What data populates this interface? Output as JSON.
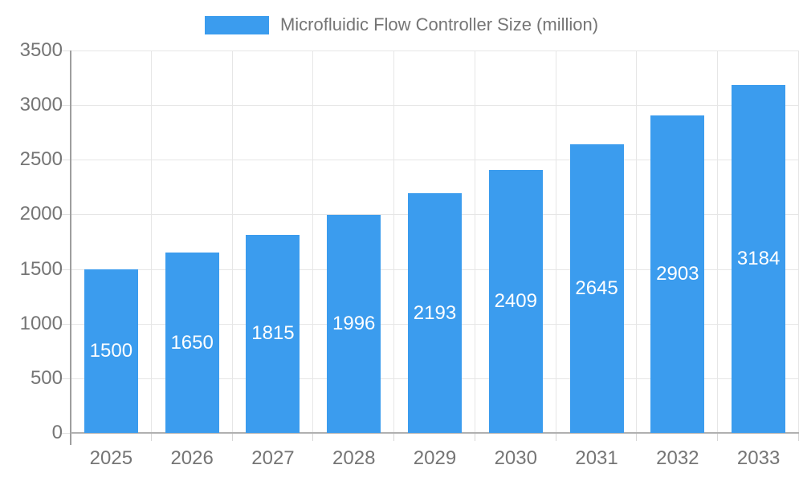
{
  "legend": {
    "label": "Microfluidic Flow Controller Size (million)"
  },
  "chart_data": {
    "type": "bar",
    "title": "",
    "xlabel": "",
    "ylabel": "",
    "categories": [
      "2025",
      "2026",
      "2027",
      "2028",
      "2029",
      "2030",
      "2031",
      "2032",
      "2033"
    ],
    "values": [
      1500,
      1650,
      1815,
      1996,
      2193,
      2409,
      2645,
      2903,
      3184
    ],
    "series_name": "Microfluidic Flow Controller Size (million)",
    "yticks": [
      0,
      500,
      1000,
      1500,
      2000,
      2500,
      3000,
      3500
    ],
    "ylim": [
      0,
      3500
    ],
    "grid": true,
    "legend_position": "top-center",
    "bar_color": "#3b9cee",
    "value_label_color": "#ffffff",
    "value_label_position": "inside-center"
  },
  "colors": {
    "accent_blue": "#3b9cee",
    "text_gray": "#757575",
    "gridline": "#e6e6e6",
    "axis": "#9e9e9e",
    "background": "#ffffff"
  }
}
